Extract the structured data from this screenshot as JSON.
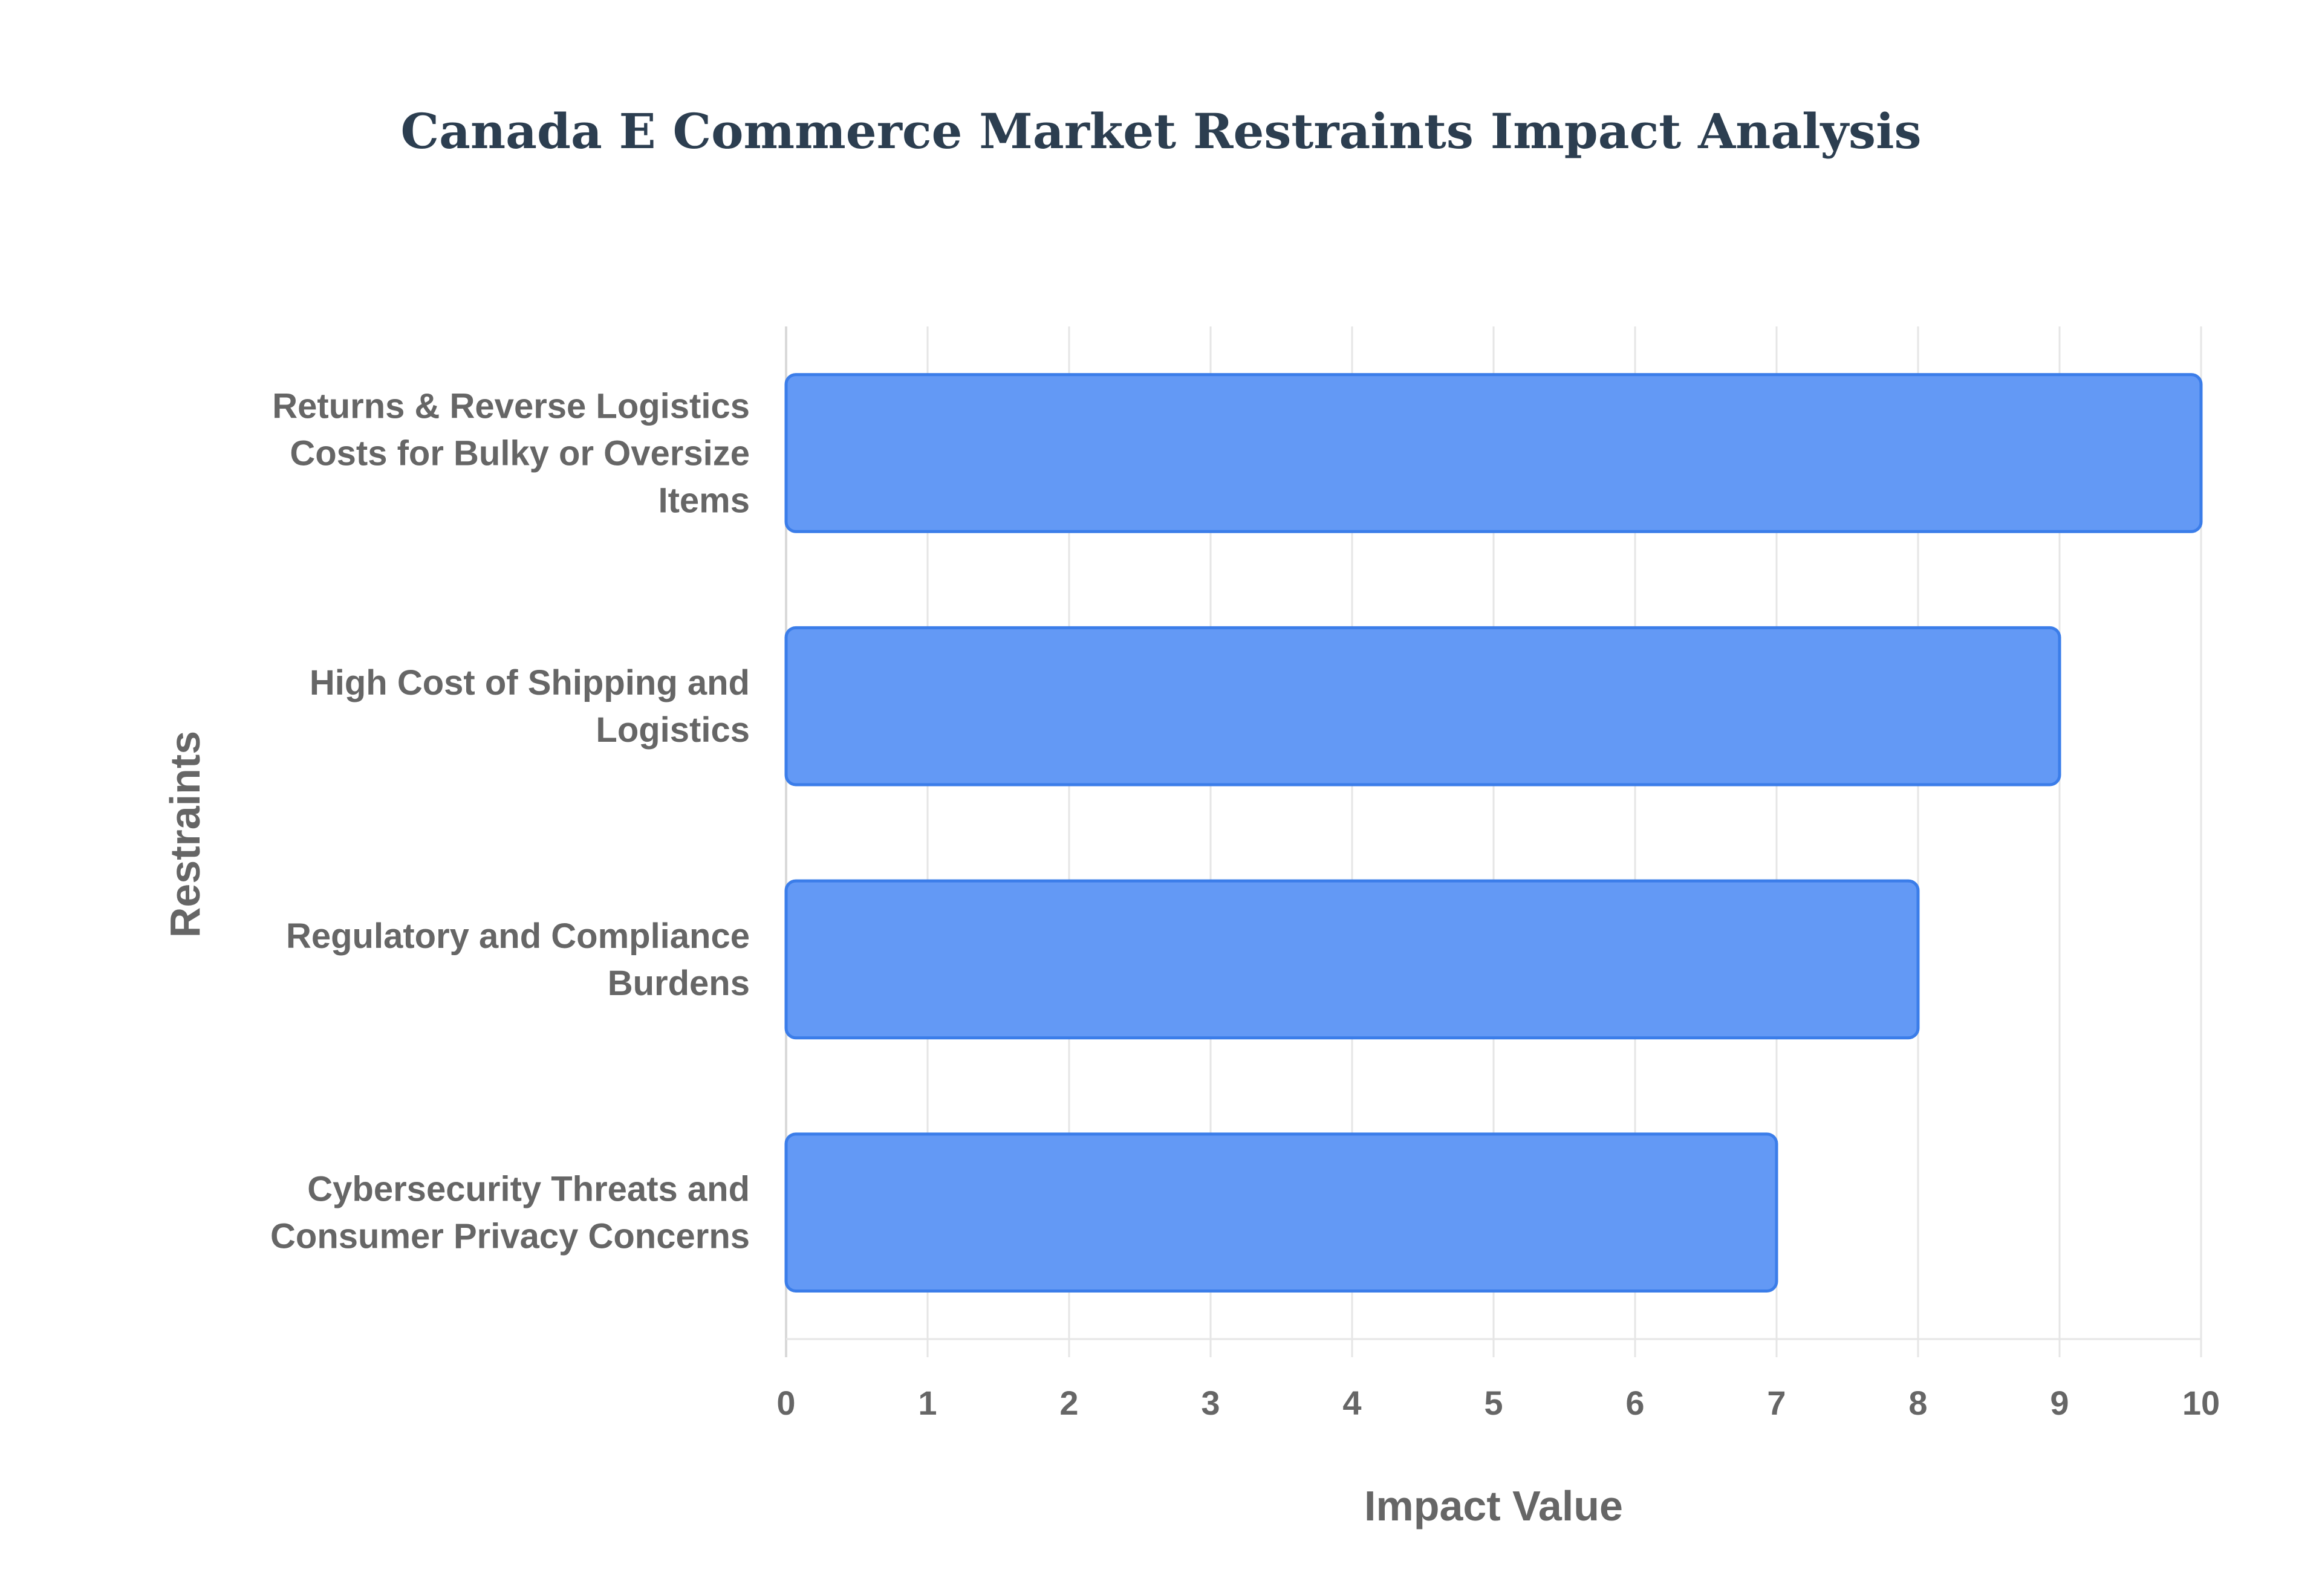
{
  "chart_data": {
    "type": "bar",
    "orientation": "horizontal",
    "title": "Canada E Commerce Market Restraints Impact Analysis",
    "xlabel": "Impact Value",
    "ylabel": "Restraints",
    "xlim": [
      0,
      10
    ],
    "xticks": [
      "0",
      "1",
      "2",
      "3",
      "4",
      "5",
      "6",
      "7",
      "8",
      "9",
      "10"
    ],
    "grid": true,
    "legend": "none",
    "bar_color": "#6399f5",
    "bar_border_color": "#3b7de9",
    "categories": [
      [
        "Returns & Reverse Logistics",
        "Costs for Bulky or Oversize",
        "Items"
      ],
      [
        "High Cost of Shipping and",
        "Logistics"
      ],
      [
        "Regulatory and Compliance",
        "Burdens"
      ],
      [
        "Cybersecurity Threats and",
        "Consumer Privacy Concerns"
      ]
    ],
    "values": [
      10,
      9,
      8,
      7
    ]
  }
}
